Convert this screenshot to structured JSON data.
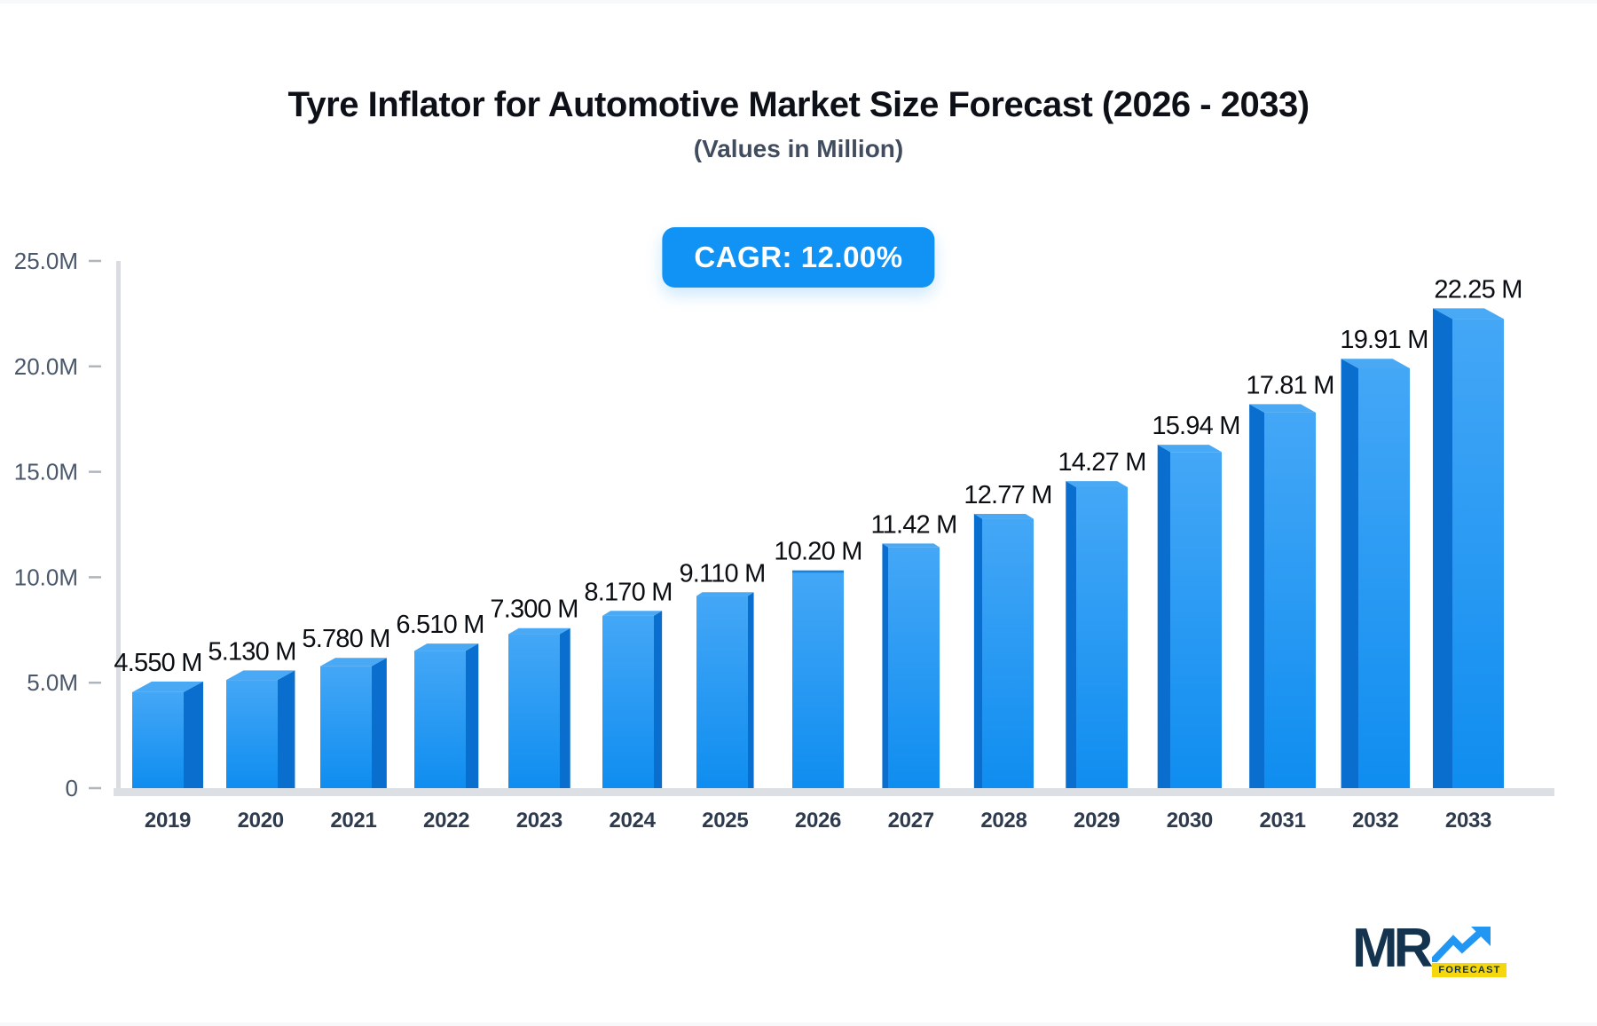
{
  "header": {
    "title": "Tyre Inflator for Automotive Market Size Forecast (2026 - 2033)",
    "subtitle": "(Values in Million)",
    "cagr_label": "CAGR: 12.00%"
  },
  "colors": {
    "badge_bg": "#1193f5",
    "badge_text": "#ffffff",
    "title_text": "#0d1117",
    "subtitle_text": "#414d5e",
    "axis_line": "#d9dde2",
    "floor": "#dcdfe4",
    "tick_text": "#4a576b",
    "year_text": "#2e3a4e",
    "value_text": "#0b0e13"
  },
  "chart_data": {
    "type": "bar",
    "title": "Tyre Inflator for Automotive Market Size Forecast (2026 - 2033)",
    "subtitle": "(Values in Million)",
    "unit": "Million",
    "grid": false,
    "legend": null,
    "ylim": [
      0,
      25
    ],
    "categories": [
      "2019",
      "2020",
      "2021",
      "2022",
      "2023",
      "2024",
      "2025",
      "2026",
      "2027",
      "2028",
      "2029",
      "2030",
      "2031",
      "2032",
      "2033"
    ],
    "values": [
      4.55,
      5.13,
      5.78,
      6.51,
      7.3,
      8.17,
      9.11,
      10.2,
      11.42,
      12.77,
      14.27,
      15.94,
      17.81,
      19.91,
      22.25
    ],
    "value_labels": [
      "4.550 M",
      "5.130 M",
      "5.780 M",
      "6.510 M",
      "7.300 M",
      "8.170 M",
      "9.110 M",
      "10.20 M",
      "11.42 M",
      "12.77 M",
      "14.27 M",
      "15.94 M",
      "17.81 M",
      "19.91 M",
      "22.25 M"
    ],
    "y_ticks": [
      {
        "value": 25,
        "label": "25.0M"
      },
      {
        "value": 20,
        "label": "20.0M"
      },
      {
        "value": 15,
        "label": "15.0M"
      },
      {
        "value": 10,
        "label": "10.0M"
      },
      {
        "value": 5,
        "label": "5.0M"
      },
      {
        "value": 0,
        "label": "0"
      }
    ],
    "bar_color_front_top": "#44a7f6",
    "bar_color_front_bottom": "#0f8df0",
    "bar_color_side": "#0a6ecf",
    "bar_color_top": "#4aa9f4",
    "bar_color_center_edge": "#1583e0"
  },
  "logo": {
    "name_part": "MR",
    "sub_label": "FORECAST",
    "navy": "#14334f",
    "blue": "#2196f3",
    "yellow": "#f6d60d"
  }
}
